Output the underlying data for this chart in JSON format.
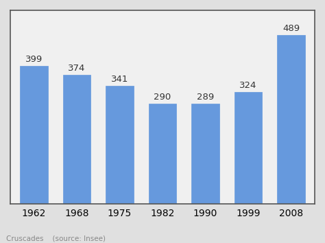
{
  "years": [
    "1962",
    "1968",
    "1975",
    "1982",
    "1990",
    "1999",
    "2008"
  ],
  "values": [
    399,
    374,
    341,
    290,
    289,
    324,
    489
  ],
  "bar_color": "#6699dd",
  "background_color": "#e0e0e0",
  "plot_bg_color": "#f0f0f0",
  "border_color": "#555555",
  "label_color": "#333333",
  "ylim": [
    0,
    560
  ],
  "bar_width": 0.65,
  "label_fontsize": 9.5,
  "tick_fontsize": 10,
  "footnote": "Cruscades    (source: Insee)",
  "footnote_fontsize": 7.5,
  "footnote_color": "#888888"
}
